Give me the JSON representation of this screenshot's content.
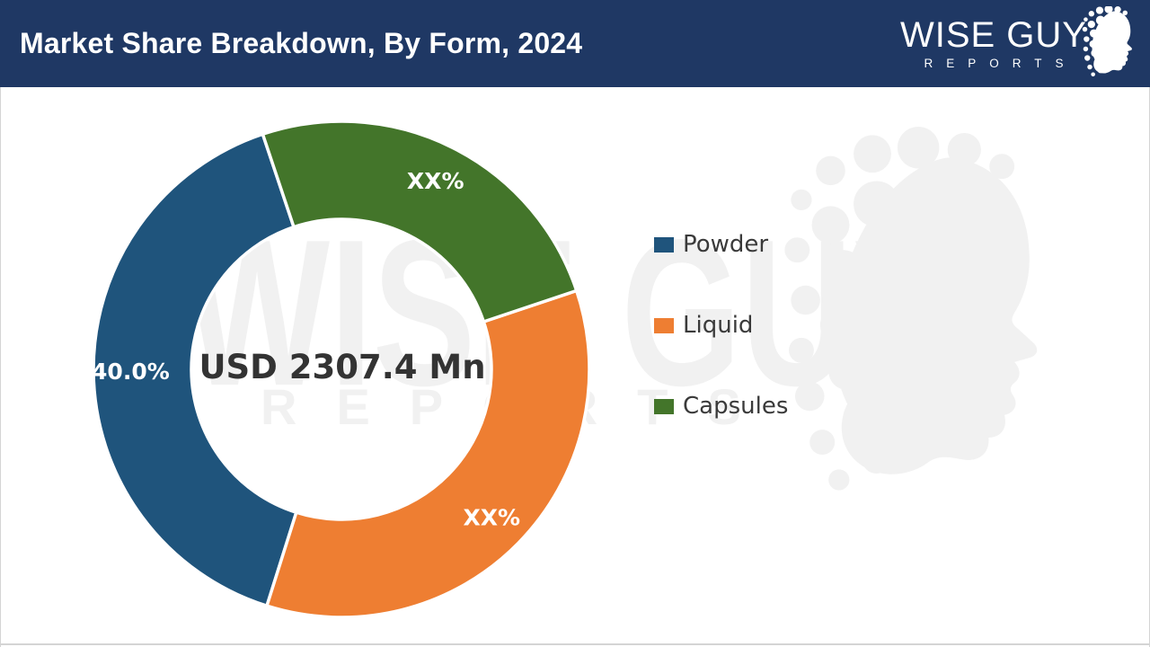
{
  "header": {
    "title": "Market Share Breakdown, By Form, 2024",
    "logo": {
      "line1": "WISE GUY",
      "line2": "REPORTS"
    }
  },
  "watermark": {
    "line1": "WISE GUY",
    "line2": "REPORTS"
  },
  "chart_data": {
    "type": "pie",
    "subtype": "donut",
    "title": "Market Share Breakdown, By Form, 2024",
    "center_label": "USD 2307.4 Mn",
    "start_angle_deg": 108.5,
    "direction": "counterclockwise",
    "inner_radius_ratio": 0.605,
    "label_radius_ratio": 0.85,
    "legend_position": "right",
    "segments": [
      {
        "label": "Powder",
        "value_pct": 40,
        "display": "40.0%",
        "color": "#1f547c"
      },
      {
        "label": "Liquid",
        "value_pct": 35,
        "display": "XX%",
        "color": "#ee7e32"
      },
      {
        "label": "Capsules",
        "value_pct": 25,
        "display": "XX%",
        "color": "#43752a"
      }
    ]
  },
  "palette": {
    "header_bg": "#1f3864",
    "center_text": "#333333",
    "legend_text": "#3a3a3a",
    "watermark": "#f1f1f1",
    "border": "#d4d4d4",
    "title_text": "#ffffff"
  }
}
